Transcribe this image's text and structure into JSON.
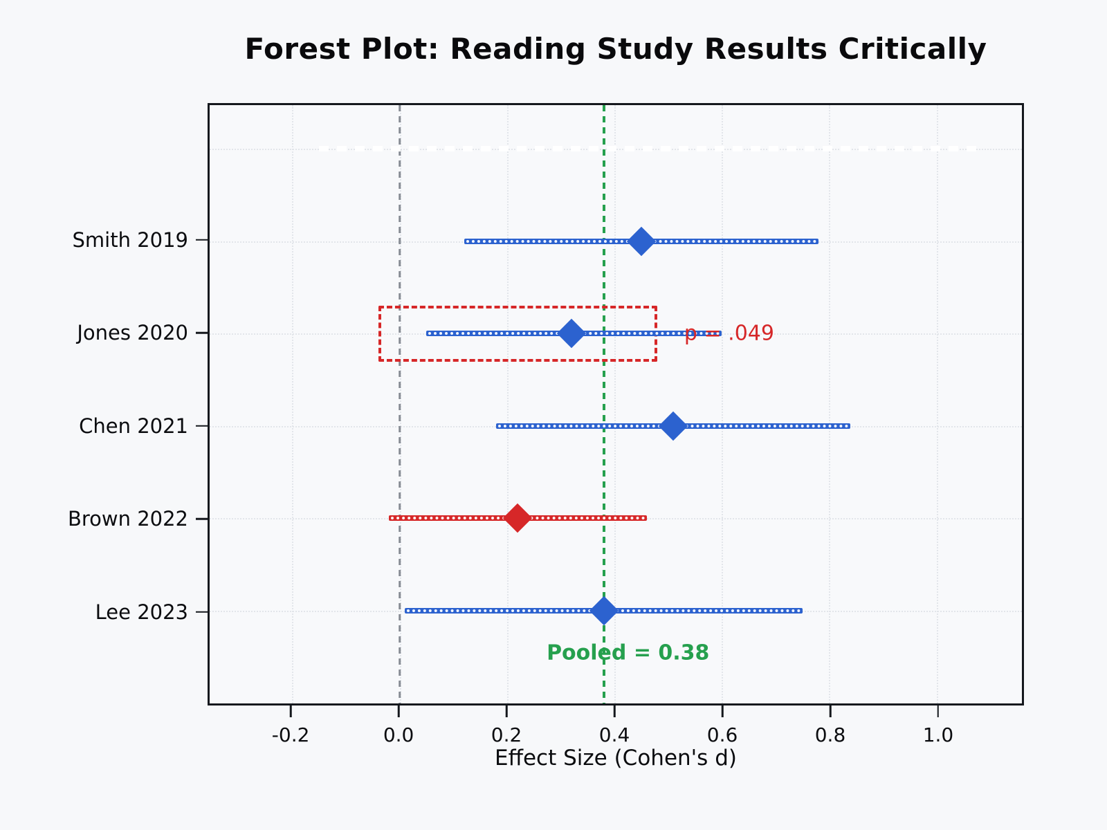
{
  "title": "Forest Plot: Reading Study Results Critically",
  "chart_data": {
    "type": "scatter",
    "subtype": "forest-plot",
    "title": "Forest Plot: Reading Study Results Critically",
    "xlabel": "Effect Size (Cohen's d)",
    "xlim": [
      -0.354,
      1.159
    ],
    "grid": true,
    "x_ticks": [
      -0.2,
      0.0,
      0.2,
      0.4,
      0.6,
      0.8,
      1.0
    ],
    "x_tick_labels": [
      "-0.2",
      "0.0",
      "0.2",
      "0.4",
      "0.6",
      "0.8",
      "1.0"
    ],
    "studies": [
      {
        "label": "Smith 2019",
        "estimate": 0.45,
        "ci_low": 0.12,
        "ci_high": 0.78,
        "color": "#2c62cf",
        "significant": true
      },
      {
        "label": "Jones 2020",
        "estimate": 0.32,
        "ci_low": 0.05,
        "ci_high": 0.6,
        "color": "#2c62cf",
        "significant": true
      },
      {
        "label": "Chen 2021",
        "estimate": 0.51,
        "ci_low": 0.18,
        "ci_high": 0.84,
        "color": "#2c62cf",
        "significant": true
      },
      {
        "label": "Brown 2022",
        "estimate": 0.22,
        "ci_low": -0.02,
        "ci_high": 0.46,
        "color": "#d62728",
        "significant": false
      },
      {
        "label": "Lee 2023",
        "estimate": 0.38,
        "ci_low": 0.01,
        "ci_high": 0.75,
        "color": "#2c62cf",
        "significant": true
      }
    ],
    "ghost_row": {
      "ci_low": -0.15,
      "ci_high": 1.09,
      "color": "#ffffff"
    },
    "zero_line": {
      "x": 0.0,
      "color": "#868b93",
      "style": "dashed"
    },
    "pooled_line": {
      "x": 0.38,
      "color": "#26a04e",
      "style": "dotted",
      "label": "Pooled = 0.38"
    },
    "highlight_box": {
      "x_low": -0.04,
      "x_high": 0.48,
      "row": "Jones 2020",
      "color": "#d62728",
      "style": "dashed"
    },
    "annotation": {
      "text": "p = .049",
      "x": 0.53,
      "row": "Jones 2020",
      "color": "#d62728"
    }
  },
  "colors": {
    "background": "#f7f8fa",
    "frame": "#15181d",
    "blue": "#2c62cf",
    "red": "#d62728",
    "green": "#26a04e",
    "gray": "#868b93",
    "gridline": "#e2e5ea"
  }
}
